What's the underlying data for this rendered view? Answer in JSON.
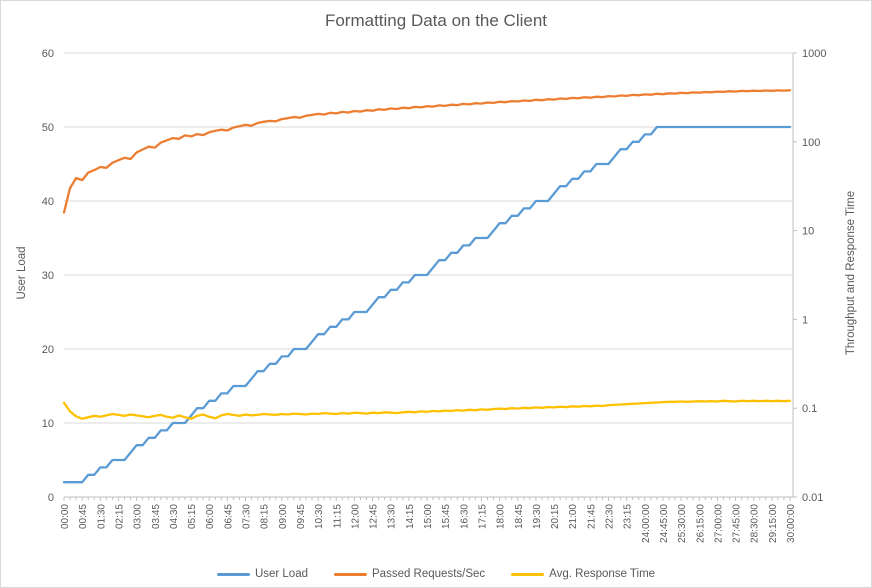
{
  "chart_data": {
    "type": "line",
    "title": "Formatting Data on the Client",
    "sample_interval_seconds": 15,
    "x_max_seconds": 1800,
    "x_tick_interval_seconds": 45,
    "x_tick_labels": [
      "00:00",
      "00:45",
      "01:30",
      "02:15",
      "03:00",
      "03:45",
      "04:30",
      "05:15",
      "06:00",
      "06:45",
      "07:30",
      "08:15",
      "09:00",
      "09:45",
      "10:30",
      "11:15",
      "12:00",
      "12:45",
      "13:30",
      "14:15",
      "15:00",
      "15:45",
      "16:30",
      "17:15",
      "18:00",
      "18:45",
      "19:30",
      "20:15",
      "21:00",
      "21:45",
      "22:30",
      "23:15",
      "24:00:00",
      "24:45:00",
      "25:30:00",
      "26:15:00",
      "27:00:00",
      "27:45:00",
      "28:30:00",
      "29:15:00",
      "30:00:00"
    ],
    "axes": {
      "left": {
        "title": "User Load",
        "scale": "linear",
        "min": 0,
        "max": 60,
        "tick_values": [
          0,
          10,
          20,
          30,
          40,
          50,
          60
        ],
        "tick_labels": [
          "0",
          "10",
          "20",
          "30",
          "40",
          "50",
          "60"
        ]
      },
      "right": {
        "title": "Throughput and Response Time",
        "scale": "log",
        "min": 0.01,
        "max": 1000,
        "tick_values": [
          0.01,
          0.1,
          1,
          10,
          100,
          1000
        ],
        "tick_labels": [
          "0.01",
          "0.1",
          "1",
          "10",
          "100",
          "1000"
        ]
      }
    },
    "grid": "horizontal",
    "legend_position": "bottom",
    "series": [
      {
        "name": "User Load",
        "axis": "left",
        "color": "#5B9BD5",
        "values": [
          2,
          2,
          2,
          2,
          3,
          3,
          4,
          4,
          5,
          5,
          5,
          6,
          7,
          7,
          8,
          8,
          9,
          9,
          10,
          10,
          10,
          11,
          12,
          12,
          13,
          13,
          14,
          14,
          15,
          15,
          15,
          16,
          17,
          17,
          18,
          18,
          19,
          19,
          20,
          20,
          20,
          21,
          22,
          22,
          23,
          23,
          24,
          24,
          25,
          25,
          25,
          26,
          27,
          27,
          28,
          28,
          29,
          29,
          30,
          30,
          30,
          31,
          32,
          32,
          33,
          33,
          34,
          34,
          35,
          35,
          35,
          36,
          37,
          37,
          38,
          38,
          39,
          39,
          40,
          40,
          40,
          41,
          42,
          42,
          43,
          43,
          44,
          44,
          45,
          45,
          45,
          46,
          47,
          47,
          48,
          48,
          49,
          49,
          50,
          50,
          50,
          50,
          50,
          50,
          50,
          50,
          50,
          50,
          50,
          50,
          50,
          50,
          50,
          50,
          50,
          50,
          50,
          50,
          50,
          50,
          50
        ]
      },
      {
        "name": "Passed Requests/Sec",
        "axis": "right",
        "color": "#ED7D31",
        "values": [
          16,
          30,
          39,
          37,
          45,
          48,
          52,
          51,
          58,
          62,
          66,
          64,
          76,
          82,
          88,
          86,
          98,
          104,
          110,
          108,
          118,
          115,
          122,
          119,
          128,
          133,
          137,
          134,
          145,
          150,
          155,
          152,
          163,
          168,
          172,
          170,
          180,
          185,
          190,
          187,
          196,
          201,
          206,
          203,
          212,
          209,
          217,
          214,
          222,
          219,
          227,
          224,
          232,
          229,
          237,
          234,
          242,
          239,
          247,
          244,
          252,
          249,
          257,
          254,
          262,
          259,
          267,
          264,
          272,
          269,
          277,
          274,
          282,
          279,
          287,
          284,
          292,
          289,
          297,
          294,
          302,
          299,
          307,
          304,
          312,
          309,
          317,
          314,
          322,
          319,
          327,
          324,
          332,
          329,
          337,
          334,
          342,
          339,
          347,
          344,
          352,
          349,
          356,
          353,
          360,
          357,
          364,
          361,
          368,
          365,
          371,
          368,
          374,
          371,
          376,
          373,
          378,
          375,
          379,
          377,
          380
        ]
      },
      {
        "name": "Avg. Response Time",
        "axis": "right",
        "color": "#FFC000",
        "values": [
          0.115,
          0.092,
          0.081,
          0.076,
          0.079,
          0.082,
          0.08,
          0.083,
          0.086,
          0.084,
          0.082,
          0.085,
          0.083,
          0.081,
          0.079,
          0.082,
          0.084,
          0.08,
          0.078,
          0.083,
          0.079,
          0.076,
          0.082,
          0.085,
          0.08,
          0.077,
          0.083,
          0.086,
          0.084,
          0.082,
          0.085,
          0.083,
          0.084,
          0.086,
          0.085,
          0.084,
          0.086,
          0.085,
          0.087,
          0.086,
          0.085,
          0.087,
          0.086,
          0.088,
          0.087,
          0.086,
          0.088,
          0.087,
          0.089,
          0.088,
          0.087,
          0.089,
          0.088,
          0.09,
          0.089,
          0.088,
          0.09,
          0.091,
          0.09,
          0.092,
          0.091,
          0.093,
          0.092,
          0.094,
          0.093,
          0.095,
          0.094,
          0.096,
          0.095,
          0.097,
          0.096,
          0.098,
          0.099,
          0.098,
          0.1,
          0.099,
          0.101,
          0.1,
          0.102,
          0.101,
          0.103,
          0.102,
          0.104,
          0.103,
          0.105,
          0.104,
          0.106,
          0.105,
          0.107,
          0.106,
          0.108,
          0.109,
          0.11,
          0.111,
          0.112,
          0.113,
          0.114,
          0.115,
          0.116,
          0.117,
          0.118,
          0.118,
          0.119,
          0.118,
          0.119,
          0.12,
          0.119,
          0.12,
          0.119,
          0.121,
          0.12,
          0.119,
          0.121,
          0.12,
          0.121,
          0.12,
          0.121,
          0.12,
          0.121,
          0.12,
          0.121
        ]
      }
    ]
  },
  "colors": {
    "grid": "#D9D9D9",
    "axis_line": "#BFBFBF",
    "text": "#595959",
    "background": "#FFFFFF"
  }
}
